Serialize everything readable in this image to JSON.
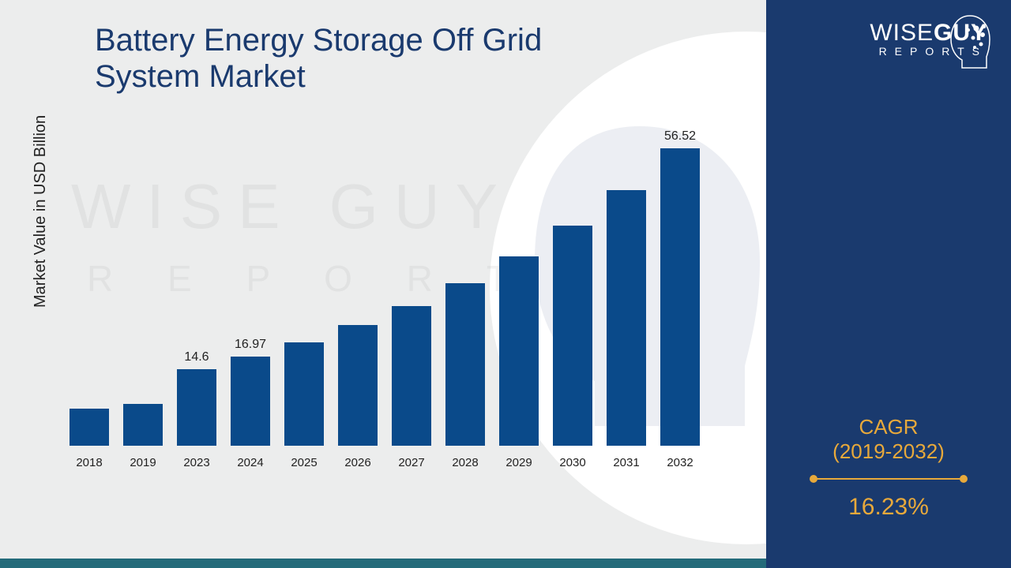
{
  "title": "Battery Energy Storage Off Grid System Market",
  "y_axis_label": "Market Value in USD Billion",
  "chart": {
    "type": "bar",
    "bar_color": "#0a4a8a",
    "background": "#eceded",
    "max_value": 60,
    "bars": [
      {
        "year": "2018",
        "value": 7.0,
        "show_label": false
      },
      {
        "year": "2019",
        "value": 8.0,
        "show_label": false
      },
      {
        "year": "2023",
        "value": 14.6,
        "show_label": true
      },
      {
        "year": "2024",
        "value": 16.97,
        "show_label": true
      },
      {
        "year": "2025",
        "value": 19.7,
        "show_label": false
      },
      {
        "year": "2026",
        "value": 22.9,
        "show_label": false
      },
      {
        "year": "2027",
        "value": 26.6,
        "show_label": false
      },
      {
        "year": "2028",
        "value": 30.9,
        "show_label": false
      },
      {
        "year": "2029",
        "value": 36.0,
        "show_label": false
      },
      {
        "year": "2030",
        "value": 41.8,
        "show_label": false
      },
      {
        "year": "2031",
        "value": 48.6,
        "show_label": false
      },
      {
        "year": "2032",
        "value": 56.52,
        "show_label": true
      }
    ]
  },
  "logo": {
    "wise": "WISE",
    "guy": "GUY",
    "reports": "REPORTS"
  },
  "cagr": {
    "title": "CAGR",
    "range": "(2019-2032)",
    "value": "16.23%",
    "color": "#e8a93b"
  },
  "watermark": {
    "line1": "WISE GUY",
    "line2": "R E P O R T S"
  },
  "colors": {
    "panel_bg": "#1a3a6e",
    "circle_bg": "#ffffff",
    "title_color": "#1a3a6e",
    "bottom_bar": "#246b7a"
  }
}
